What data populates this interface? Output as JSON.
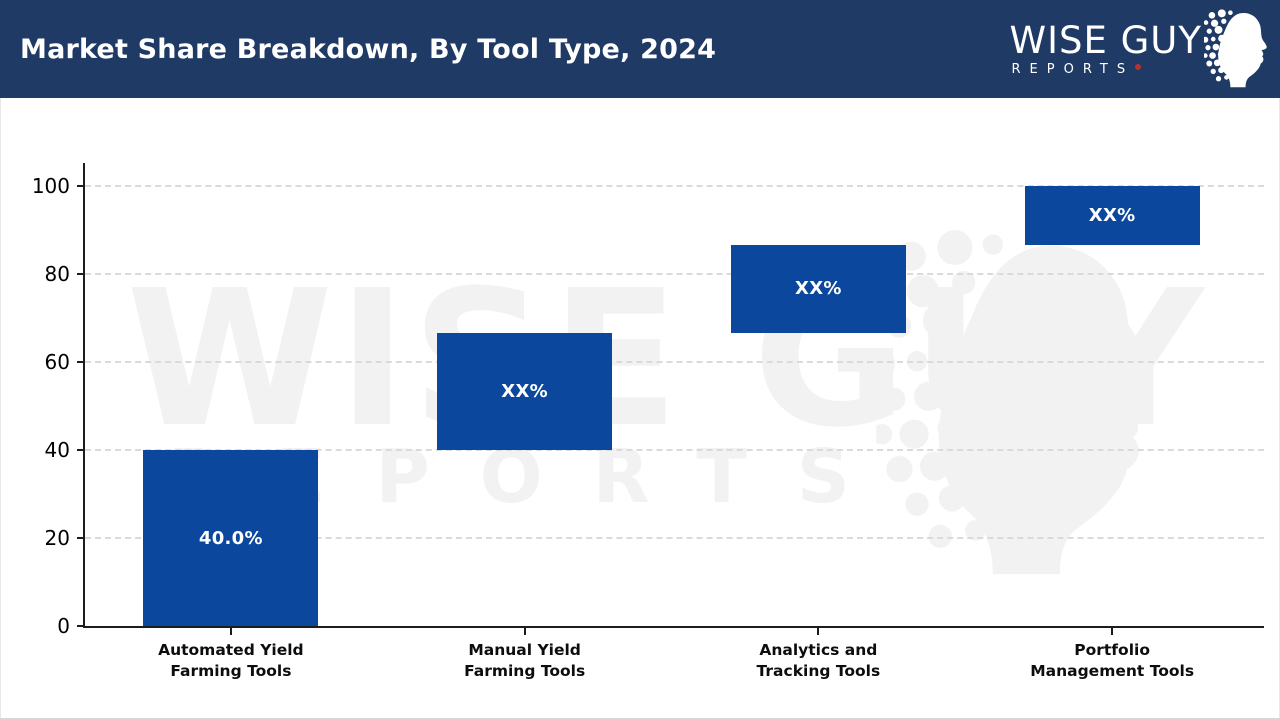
{
  "header": {
    "title": "Market Share Breakdown, By Tool Type, 2024",
    "logo": {
      "brand": "WISE GUY",
      "sub": "REPORTS"
    }
  },
  "watermark": {
    "brand": "WISE GUY",
    "sub": "REPORTS"
  },
  "chart_data": {
    "type": "bar",
    "subtype": "floating-segment-waterfall",
    "title": "Market Share Breakdown, By Tool Type, 2024",
    "categories": [
      "Automated Yield Farming Tools",
      "Manual Yield Farming Tools",
      "Analytics and Tracking Tools",
      "Portfolio Management Tools"
    ],
    "category_lines": [
      [
        "Automated Yield",
        "Farming Tools"
      ],
      [
        "Manual Yield",
        "Farming Tools"
      ],
      [
        "Analytics and",
        "Tracking Tools"
      ],
      [
        "Portfolio",
        "Management Tools"
      ]
    ],
    "series": [
      {
        "name": "Market Share",
        "segments": [
          {
            "from": 0,
            "to": 40,
            "label": "40.0%"
          },
          {
            "from": 40,
            "to": 66.7,
            "label": "XX%"
          },
          {
            "from": 66.7,
            "to": 86.7,
            "label": "XX%"
          },
          {
            "from": 86.7,
            "to": 100,
            "label": "XX%"
          }
        ]
      }
    ],
    "xlabel": "",
    "ylabel": "",
    "ylim": [
      0,
      100
    ],
    "yticks": [
      0,
      20,
      40,
      60,
      80,
      100
    ],
    "grid": {
      "horizontal": true,
      "style": "dashed"
    },
    "legend": "none",
    "colors": {
      "bar": "#0c479e",
      "bar_label": "#ffffff",
      "axis": "#1c1c1c",
      "grid": "#dadada",
      "header_bg": "#1f3a64",
      "logo_dot": "#b8312f",
      "watermark": "#f2f2f2"
    }
  }
}
